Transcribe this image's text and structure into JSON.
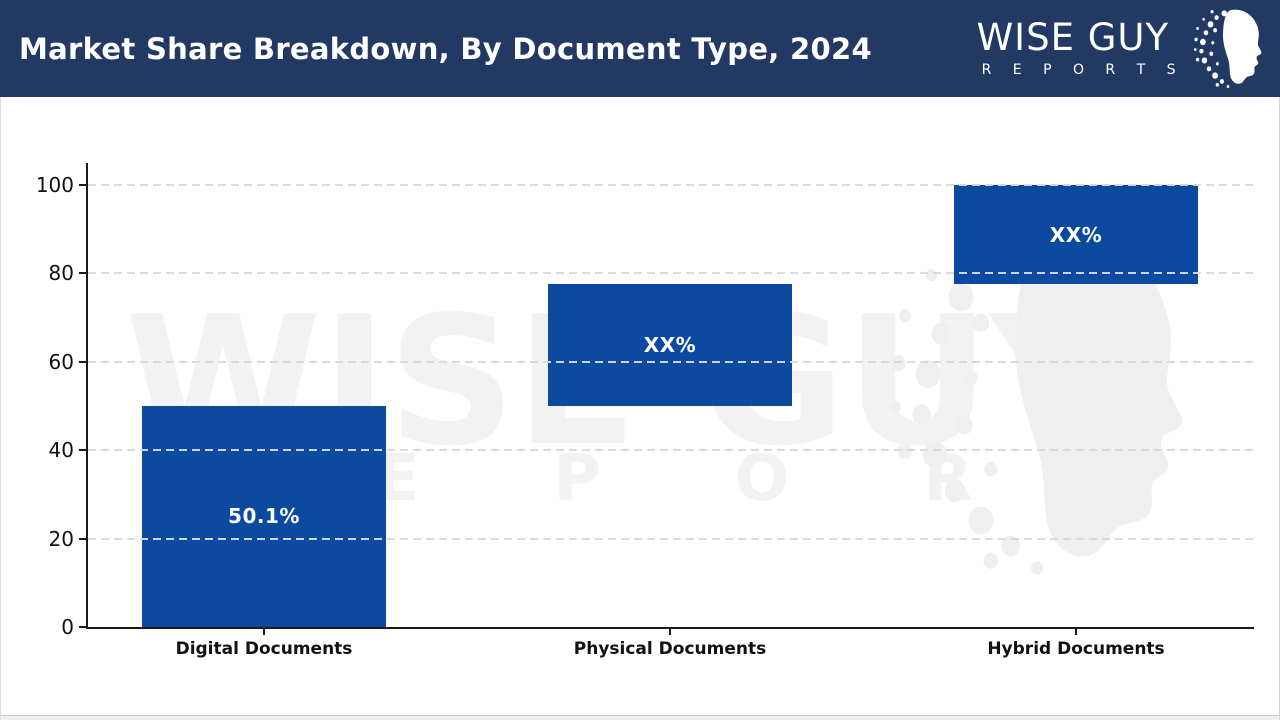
{
  "header": {
    "title": "Market Share Breakdown, By Document Type, 2024",
    "logo": {
      "name": "WISE GUY",
      "reports": "R E P O R T S"
    }
  },
  "watermark": {
    "name": "WISE GUY",
    "reports": "R E P O R T S"
  },
  "colors": {
    "header_bg": "#223a63",
    "bar": "#0c4aa0",
    "grid": "#d9d9d9",
    "axis": "#1a1a1a",
    "bar_label": "#ffffff",
    "watermark": "#f2f2f2"
  },
  "chart_data": {
    "type": "bar",
    "subtype": "waterfall",
    "title": "Market Share Breakdown, By Document Type, 2024",
    "categories": [
      "Digital Documents",
      "Physical Documents",
      "Hybrid Documents"
    ],
    "segments": [
      {
        "category": "Digital Documents",
        "start": 0,
        "end": 50.1,
        "label": "50.1%"
      },
      {
        "category": "Physical Documents",
        "start": 50.1,
        "end": 77.5,
        "label": "XX%"
      },
      {
        "category": "Hybrid Documents",
        "start": 77.5,
        "end": 100,
        "label": "XX%"
      }
    ],
    "xlabel": "",
    "ylabel": "",
    "yticks": [
      0,
      20,
      40,
      60,
      80,
      100
    ],
    "ylim": [
      0,
      105
    ],
    "grid": "horizontal-dashed",
    "legend": "none",
    "bar_color": "#0c4aa0"
  }
}
